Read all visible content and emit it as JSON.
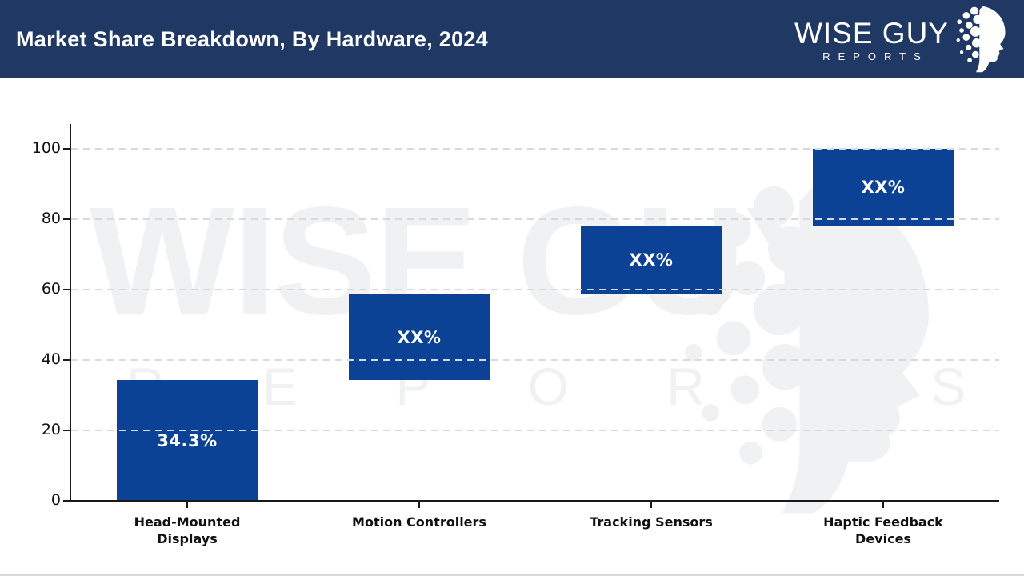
{
  "header": {
    "title": "Market Share Breakdown, By Hardware, 2024",
    "logo": {
      "line1": "WISE GUY",
      "line2": "REPORTS"
    }
  },
  "watermark": {
    "line1": "WISE GUY",
    "line2": "R E P O R T S"
  },
  "colors": {
    "header_bg": "#1f3864",
    "bar": "#0b4295",
    "grid": "#d9d9d9",
    "axis": "#1a1a1a",
    "bar_label": "#ffffff",
    "watermark": "#f0f1f3",
    "title_text": "#ffffff"
  },
  "chart_data": {
    "type": "bar",
    "subtype": "waterfall",
    "title": "Market Share Breakdown, By Hardware, 2024",
    "xlabel": "",
    "ylabel": "",
    "ylim": [
      0,
      105
    ],
    "y_ticks": [
      0,
      20,
      40,
      60,
      80,
      100
    ],
    "grid": "horizontal-dashed",
    "legend": "none",
    "categories": [
      "Head-Mounted\nDisplays",
      "Motion Controllers",
      "Tracking Sensors",
      "Haptic Feedback\nDevices"
    ],
    "bars": [
      {
        "category": "Head-Mounted Displays",
        "display_label": "34.3%",
        "start": 0,
        "end": 34.3,
        "value": 34.3
      },
      {
        "category": "Motion Controllers",
        "display_label": "XX%",
        "start": 34.3,
        "end": 58.6,
        "value": 24.3
      },
      {
        "category": "Tracking Sensors",
        "display_label": "XX%",
        "start": 58.6,
        "end": 78.2,
        "value": 19.6
      },
      {
        "category": "Haptic Feedback Devices",
        "display_label": "XX%",
        "start": 78.2,
        "end": 100,
        "value": 21.8
      }
    ]
  }
}
